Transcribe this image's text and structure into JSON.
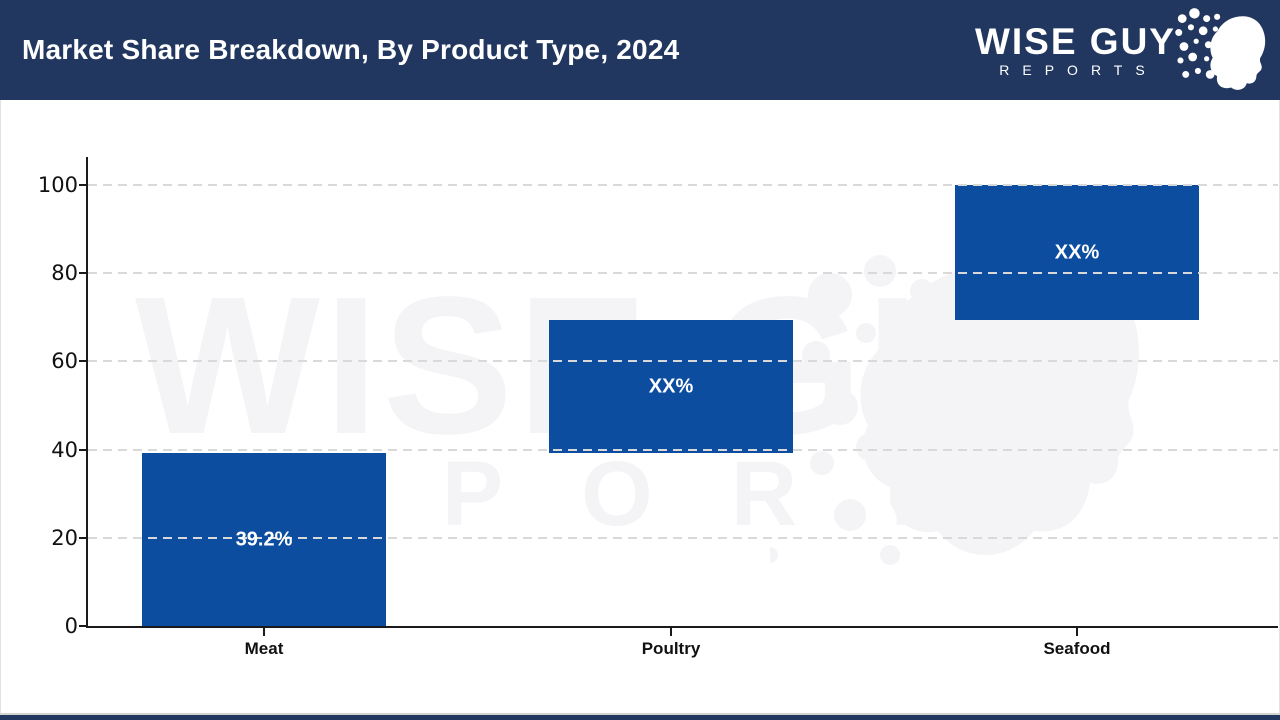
{
  "header": {
    "title": "Market Share Breakdown, By Product Type, 2024",
    "bg_color": "#22375f",
    "logo": {
      "line1": "WISE GUY",
      "line2": "REPORTS"
    }
  },
  "watermark": {
    "line1": "WISE GUY",
    "line2": "REPORTS"
  },
  "chart_data": {
    "type": "bar",
    "subtype": "waterfall",
    "title": "Market Share Breakdown, By Product Type, 2024",
    "categories": [
      "Meat",
      "Poultry",
      "Seafood"
    ],
    "segments": [
      {
        "category": "Meat",
        "start": 0,
        "end": 39.2,
        "label": "39.2%"
      },
      {
        "category": "Poultry",
        "start": 39.2,
        "end": 69.3,
        "label": "XX%"
      },
      {
        "category": "Seafood",
        "start": 69.3,
        "end": 100,
        "label": "XX%"
      }
    ],
    "bar_color": "#0d4da0",
    "label_color": "#ffffff",
    "ylim": [
      0,
      100
    ],
    "yticks": [
      0,
      20,
      40,
      60,
      80,
      100
    ],
    "ytick_labels": [
      "0",
      "20",
      "40",
      "60",
      "80",
      "100"
    ],
    "grid": "horizontal-dashed",
    "grid_color": "#d9d9d9",
    "legend": "none"
  }
}
